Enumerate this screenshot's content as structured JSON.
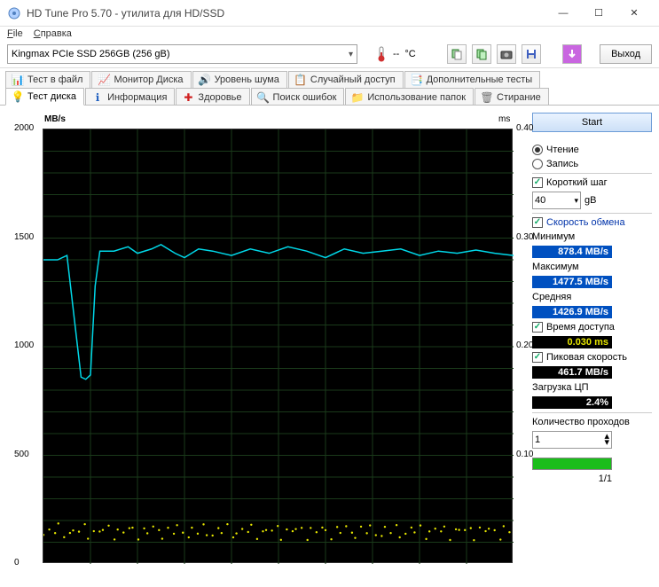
{
  "window": {
    "title": "HD Tune Pro 5.70 - утилита для HD/SSD"
  },
  "menu": {
    "file": "File",
    "help": "Справка",
    "file_u": "F",
    "help_u": "С"
  },
  "toolbar": {
    "device": "Kingmax PCIe SSD 256GB (256 gB)",
    "temp_dash": "--",
    "temp_unit": "°C",
    "exit": "Выход"
  },
  "tabs_top": [
    {
      "label": "Тест в файл",
      "icon": "📊",
      "color": "#c030c0"
    },
    {
      "label": "Монитор Диска",
      "icon": "📈",
      "color": "#2a8a2a"
    },
    {
      "label": "Уровень шума",
      "icon": "🔊",
      "color": "#cc9900"
    },
    {
      "label": "Случайный доступ",
      "icon": "📋",
      "color": "#b03030"
    },
    {
      "label": "Дополнительные тесты",
      "icon": "📑",
      "color": "#2a8a2a"
    }
  ],
  "tabs_bottom": [
    {
      "label": "Тест диска",
      "icon": "💡",
      "active": true,
      "color": "#ccaa00"
    },
    {
      "label": "Информация",
      "icon": "ℹ",
      "color": "#2060c0"
    },
    {
      "label": "Здоровье",
      "icon": "✚",
      "color": "#d02020"
    },
    {
      "label": "Поиск ошибок",
      "icon": "🔍",
      "color": "#888800"
    },
    {
      "label": "Использование папок",
      "icon": "📁",
      "color": "#d09020"
    },
    {
      "label": "Стирание",
      "icon": "🗑",
      "color": "#707070"
    }
  ],
  "chart": {
    "y_label": "MB/s",
    "y2_label": "ms",
    "background": "#000000",
    "grid_color": "#1c3a1c",
    "line_color": "#00d8e8",
    "scatter_color": "#e6e600",
    "xlim": [
      0,
      100
    ],
    "ylim_left": [
      0,
      2000
    ],
    "ylim_right": [
      0,
      0.4
    ],
    "yticks_left": [
      0,
      500,
      1000,
      1500,
      2000
    ],
    "yticks_right": [
      "0.10",
      "0.20",
      "0.30",
      "0.40"
    ],
    "grid_rows": 20,
    "grid_cols": 10,
    "line_data": [
      [
        0,
        1400
      ],
      [
        3,
        1400
      ],
      [
        5,
        1420
      ],
      [
        8,
        860
      ],
      [
        9,
        850
      ],
      [
        10,
        870
      ],
      [
        11,
        1280
      ],
      [
        12,
        1440
      ],
      [
        15,
        1440
      ],
      [
        18,
        1460
      ],
      [
        20,
        1430
      ],
      [
        23,
        1450
      ],
      [
        25,
        1470
      ],
      [
        28,
        1430
      ],
      [
        30,
        1410
      ],
      [
        33,
        1450
      ],
      [
        36,
        1440
      ],
      [
        40,
        1420
      ],
      [
        44,
        1450
      ],
      [
        48,
        1430
      ],
      [
        52,
        1460
      ],
      [
        56,
        1440
      ],
      [
        60,
        1410
      ],
      [
        64,
        1450
      ],
      [
        68,
        1430
      ],
      [
        72,
        1440
      ],
      [
        76,
        1450
      ],
      [
        80,
        1420
      ],
      [
        84,
        1440
      ],
      [
        88,
        1430
      ],
      [
        92,
        1445
      ],
      [
        96,
        1430
      ],
      [
        100,
        1420
      ]
    ],
    "scatter_y_ms": 0.03,
    "scatter_count": 95
  },
  "side": {
    "start": "Start",
    "read": "Чтение",
    "write": "Запись",
    "short_step": "Короткий шаг",
    "step_value": "40",
    "step_unit": "gB",
    "transfer_rate": "Скорость обмена",
    "minimum": "Минимум",
    "min_val": "878.4 MB/s",
    "maximum": "Максимум",
    "max_val": "1477.5 MB/s",
    "average": "Средняя",
    "avg_val": "1426.9 MB/s",
    "access_time": "Время доступа",
    "access_val": "0.030 ms",
    "burst": "Пиковая скорость",
    "burst_val": "461.7 MB/s",
    "cpu": "Загрузка ЦП",
    "cpu_val": "2.4%",
    "passes": "Количество проходов",
    "passes_val": "1",
    "pass_progress": "1/1"
  }
}
